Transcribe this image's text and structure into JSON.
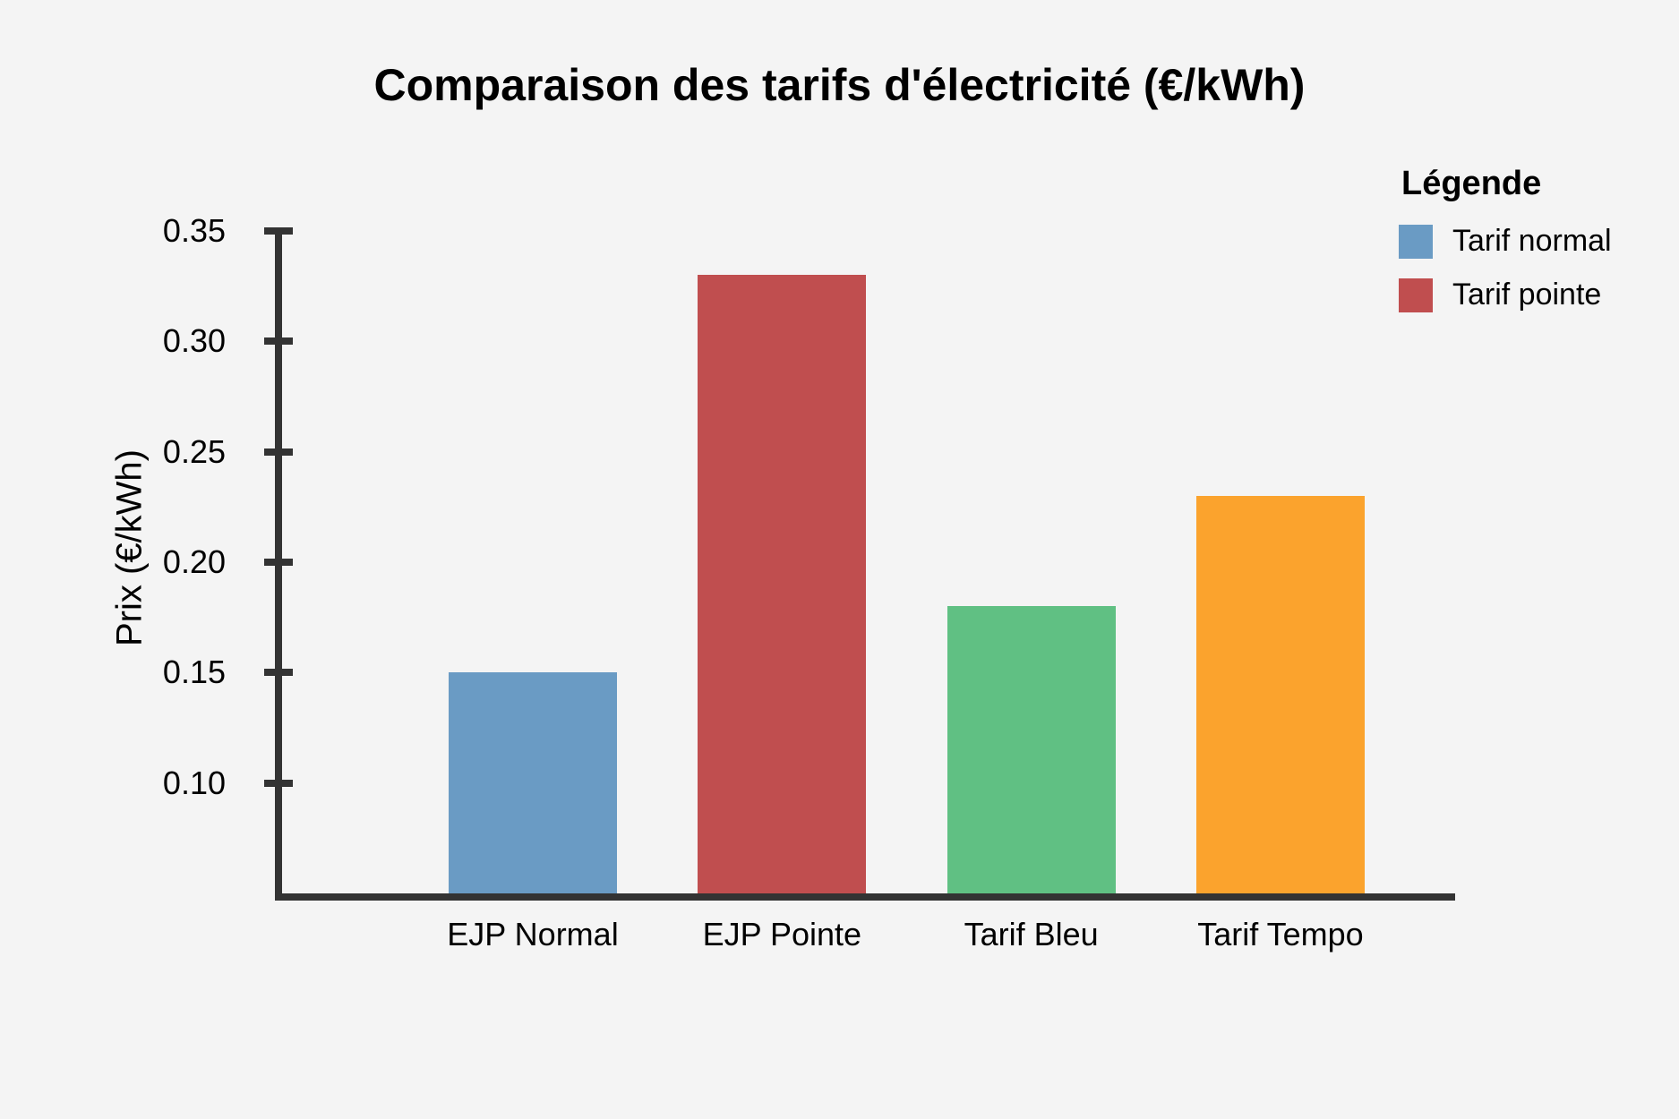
{
  "chart_data": {
    "type": "bar",
    "title": "Comparaison des tarifs d'électricité (€/kWh)",
    "ylabel": "Prix (€/kWh)",
    "xlabel": "",
    "categories": [
      "EJP Normal",
      "EJP Pointe",
      "Tarif Bleu",
      "Tarif Tempo"
    ],
    "values": [
      0.15,
      0.33,
      0.18,
      0.23
    ],
    "bar_colors": [
      "#6A9BC4",
      "#C04E4F",
      "#60C083",
      "#FBA32D"
    ],
    "yticks": [
      0.35,
      0.3,
      0.25,
      0.2,
      0.15,
      0.1
    ],
    "ytick_labels": [
      "0.35",
      "0.30",
      "0.25",
      "0.20",
      "0.15",
      "0.10"
    ],
    "ylim": [
      0.05,
      0.35
    ],
    "grid": false,
    "legend_position": "top-right",
    "legend": {
      "title": "Légende",
      "entries": [
        {
          "label": "Tarif normal",
          "color": "#6A9BC4"
        },
        {
          "label": "Tarif pointe",
          "color": "#C04E4F"
        }
      ]
    },
    "axis_color": "#333333",
    "background_color": "#F4F4F4",
    "text_color": "#000000"
  }
}
